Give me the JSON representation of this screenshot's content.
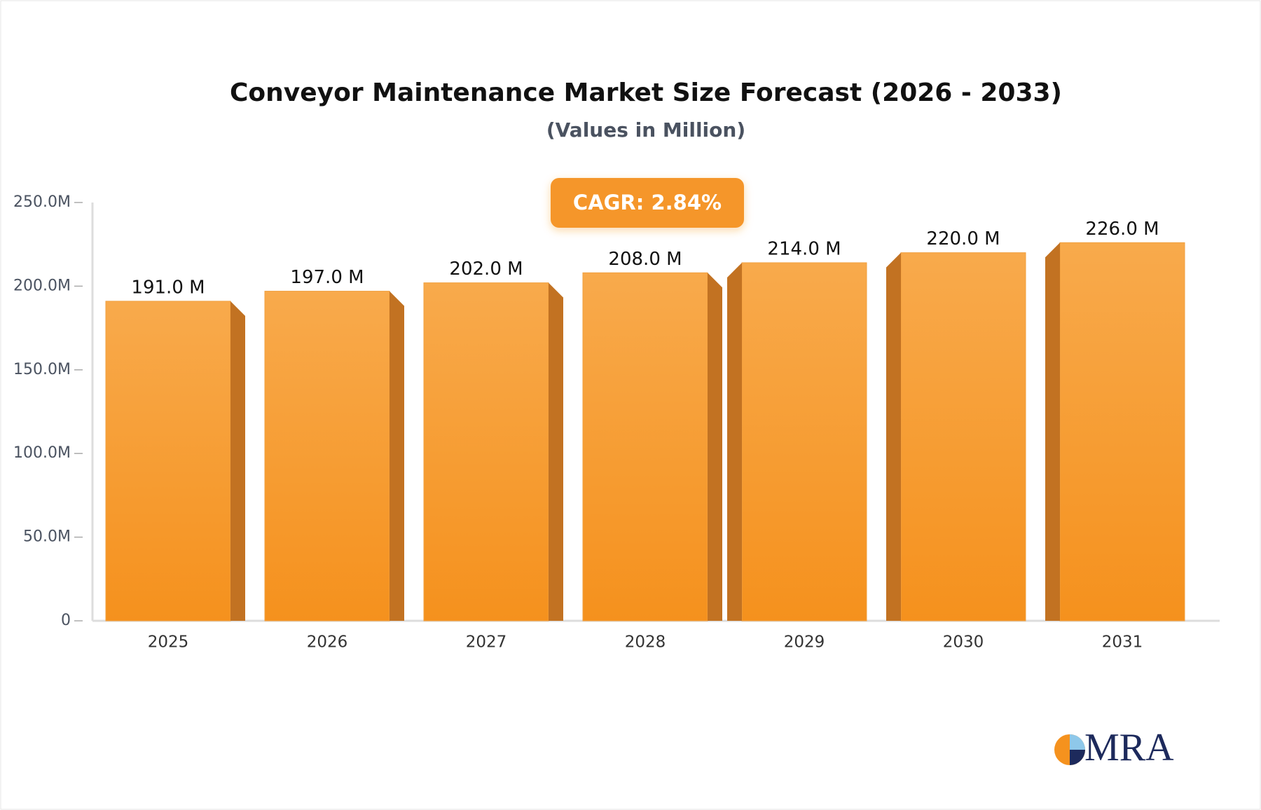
{
  "chart_data": {
    "type": "bar",
    "title": "Conveyor Maintenance Market Size Forecast (2026 - 2033)",
    "subtitle": "(Values in Million)",
    "annotation": "CAGR: 2.84%",
    "logo": "MRA",
    "categories": [
      "2025",
      "2026",
      "2027",
      "2028",
      "2029",
      "2030",
      "2031"
    ],
    "values": [
      191,
      197,
      202,
      208,
      214,
      220,
      226
    ],
    "value_labels": [
      "191.0 M",
      "197.0 M",
      "202.0 M",
      "208.0 M",
      "214.0 M",
      "220.0 M",
      "226.0 M"
    ],
    "color": "#f6992c",
    "ylim": [
      0,
      250
    ],
    "yticks": [
      0,
      {
        "value": 50,
        "label": "50.0M"
      },
      {
        "value": 100,
        "label": "100.0M"
      },
      {
        "value": 150,
        "label": "150.0M"
      },
      {
        "value": 200,
        "label": "200.0M"
      },
      {
        "value": 250,
        "label": "250.0M"
      }
    ],
    "grid": false
  }
}
